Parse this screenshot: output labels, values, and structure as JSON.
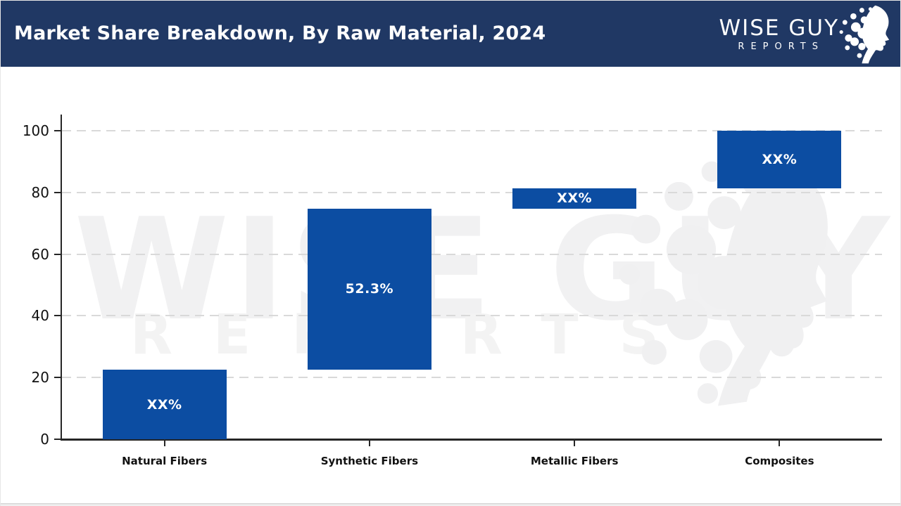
{
  "header": {
    "title": "Market Share Breakdown, By Raw Material, 2024",
    "logo": {
      "line1": "WISE GUY",
      "line2": "REPORTS"
    }
  },
  "watermark": {
    "line1": "WISE GUY",
    "line2": "REPORTS"
  },
  "colors": {
    "header_bg": "#203864",
    "bar": "#0c4da2",
    "grid": "#d9d9d9",
    "axis": "#262626",
    "bar_label_text": "#ffffff",
    "watermark": "#f1f1f2"
  },
  "chart_data": {
    "type": "bar",
    "subtype": "waterfall",
    "title": "Market Share Breakdown, By Raw Material, 2024",
    "xlabel": "",
    "ylabel": "",
    "ylim": [
      0,
      100
    ],
    "yticks": [
      0,
      20,
      40,
      60,
      80,
      100
    ],
    "grid": "horizontal-dashed",
    "legend": "none",
    "categories": [
      "Natural Fibers",
      "Synthetic Fibers",
      "Metallic Fibers",
      "Composites"
    ],
    "segments": [
      {
        "category": "Natural Fibers",
        "start": 0,
        "end": 22.5,
        "value_est": 22.5,
        "label": "XX%"
      },
      {
        "category": "Synthetic Fibers",
        "start": 22.5,
        "end": 74.8,
        "value_est": 52.3,
        "label": "52.3%"
      },
      {
        "category": "Metallic Fibers",
        "start": 74.8,
        "end": 81.3,
        "value_est": 6.5,
        "label": "XX%"
      },
      {
        "category": "Composites",
        "start": 81.3,
        "end": 100,
        "value_est": 18.7,
        "label": "XX%"
      }
    ]
  }
}
